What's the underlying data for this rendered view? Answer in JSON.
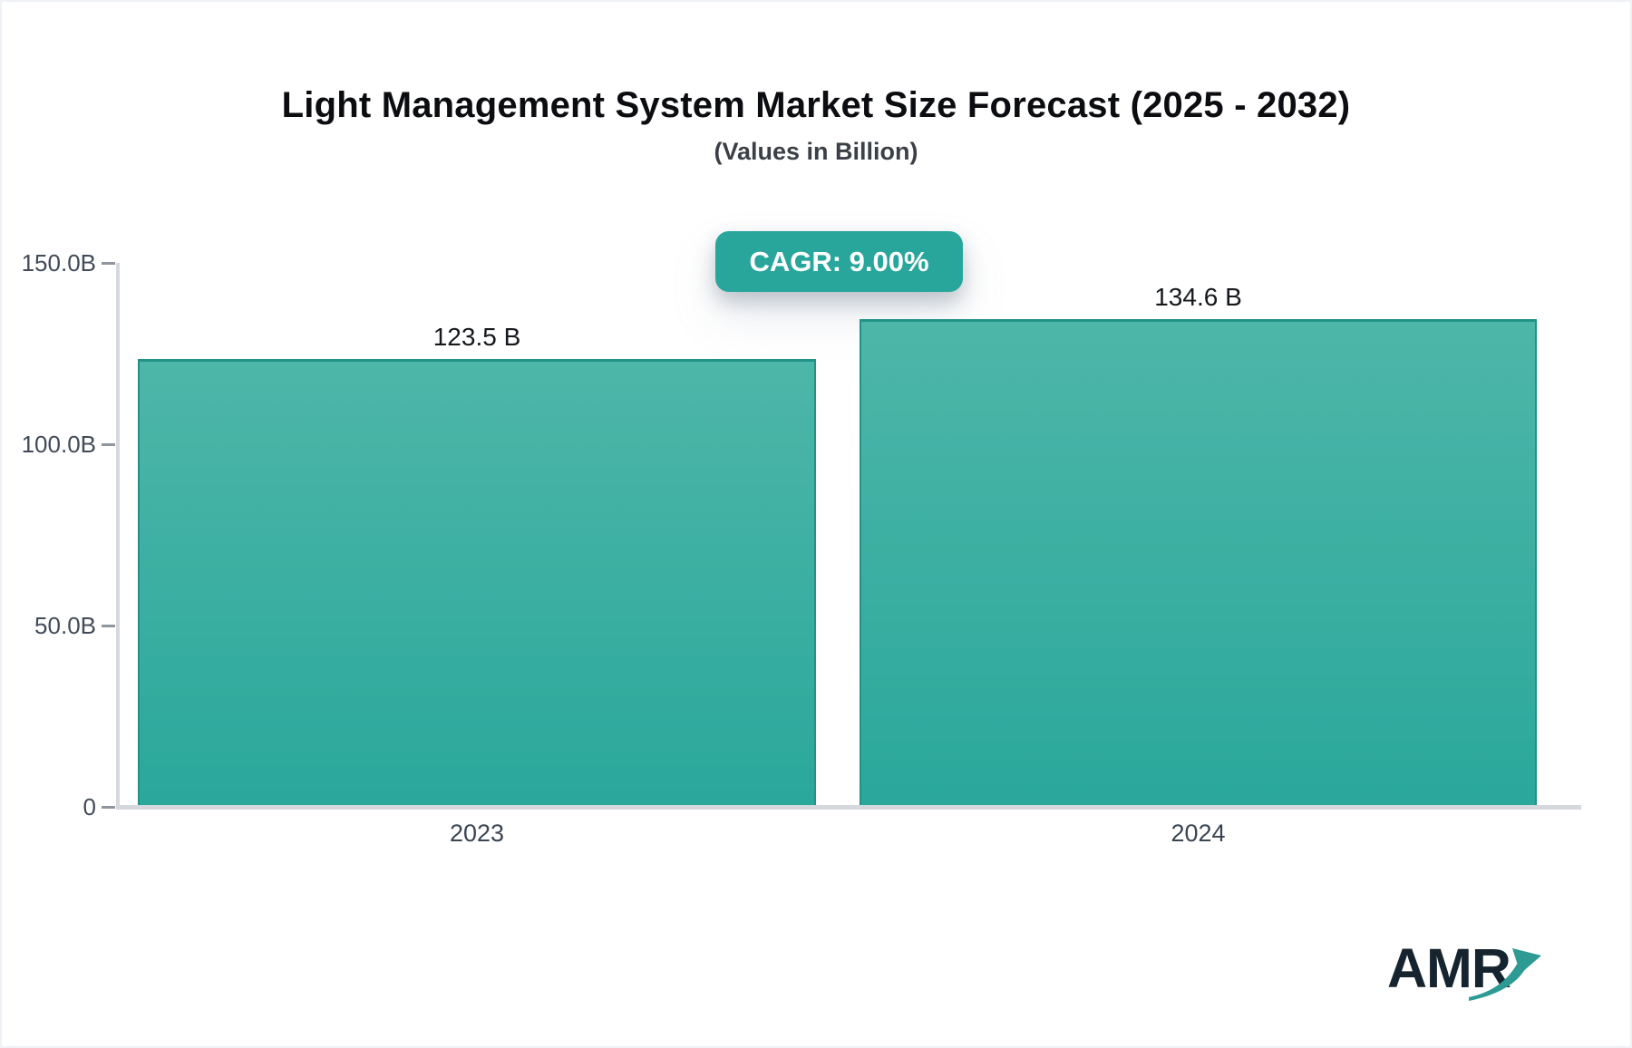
{
  "header": {
    "title": "Light Management System Market Size Forecast (2025 - 2032)",
    "subtitle": "(Values in Billion)"
  },
  "badge": {
    "label": "CAGR: 9.00%",
    "bg_color": "#29a69b"
  },
  "chart_data": {
    "type": "bar",
    "title": "Light Management System Market Size Forecast (2025 - 2032)",
    "subtitle": "(Values in Billion)",
    "cagr_label": "CAGR: 9.00%",
    "cagr_percent": "9.00%",
    "categories": [
      "2023",
      "2024"
    ],
    "values": [
      123.5,
      134.6
    ],
    "bar_labels": [
      "123.5 B",
      "134.6 B"
    ],
    "unit": "Billion",
    "ylim": [
      0,
      150
    ],
    "yticks": [
      {
        "label": "150.0B",
        "value": 150
      },
      {
        "label": "100.0B",
        "value": 100
      },
      {
        "label": "50.0B",
        "value": 50
      },
      {
        "label": "0",
        "value": 0
      }
    ],
    "grid": false,
    "legend_position": "none",
    "bar_color_top": "#4db6a9",
    "bar_color_bottom": "#2aa89b",
    "bar_border_color": "#1f9387"
  },
  "logo": {
    "text": "AMR",
    "text_color": "#15242e",
    "arrow_color": "#2d9a93"
  }
}
